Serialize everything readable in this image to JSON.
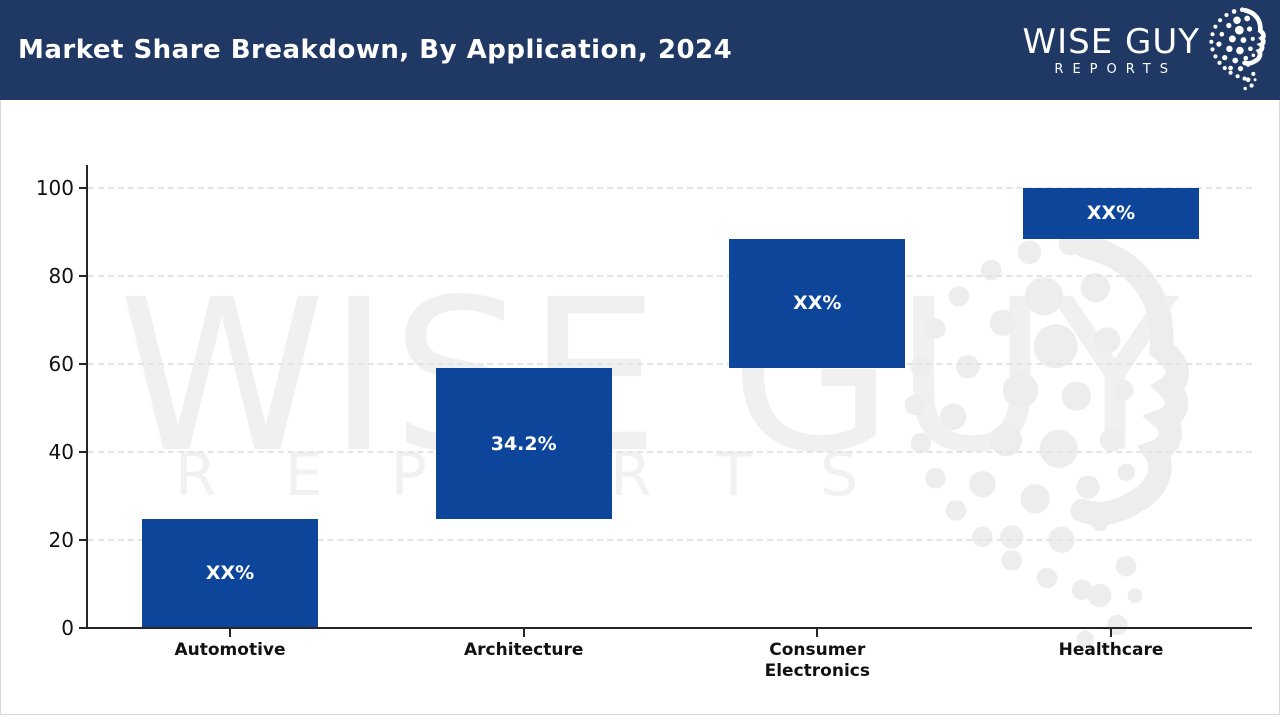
{
  "header": {
    "title": "Market Share Breakdown, By Application, 2024",
    "logo": {
      "line1": "WISE GUY",
      "line2": "REPORTS"
    }
  },
  "watermark": {
    "line1": "WISE GUY",
    "line2": "REPORTS"
  },
  "colors": {
    "header_bg": "#1f3864",
    "bar": "#0c4599",
    "grid": "#e4e4e4",
    "axis": "#262626",
    "watermark": "#efefef"
  },
  "chart_data": {
    "type": "bar",
    "subtype": "waterfall",
    "title": "Market Share Breakdown, By Application, 2024",
    "categories": [
      "Automotive",
      "Architecture",
      "Consumer\nElectronics",
      "Healthcare"
    ],
    "segments": [
      {
        "category": "Automotive",
        "start": 0,
        "end": 24.7,
        "label": "XX%"
      },
      {
        "category": "Architecture",
        "start": 24.7,
        "end": 58.9,
        "label": "34.2%"
      },
      {
        "category": "Consumer Electronics",
        "start": 58.9,
        "end": 88.4,
        "label": "XX%"
      },
      {
        "category": "Healthcare",
        "start": 88.4,
        "end": 100,
        "label": "XX%"
      }
    ],
    "xlabel": "",
    "ylabel": "",
    "ylim": [
      0,
      100
    ],
    "yticks": [
      0,
      20,
      40,
      60,
      80,
      100
    ],
    "grid": "horizontal-dashed",
    "legend": "none"
  }
}
